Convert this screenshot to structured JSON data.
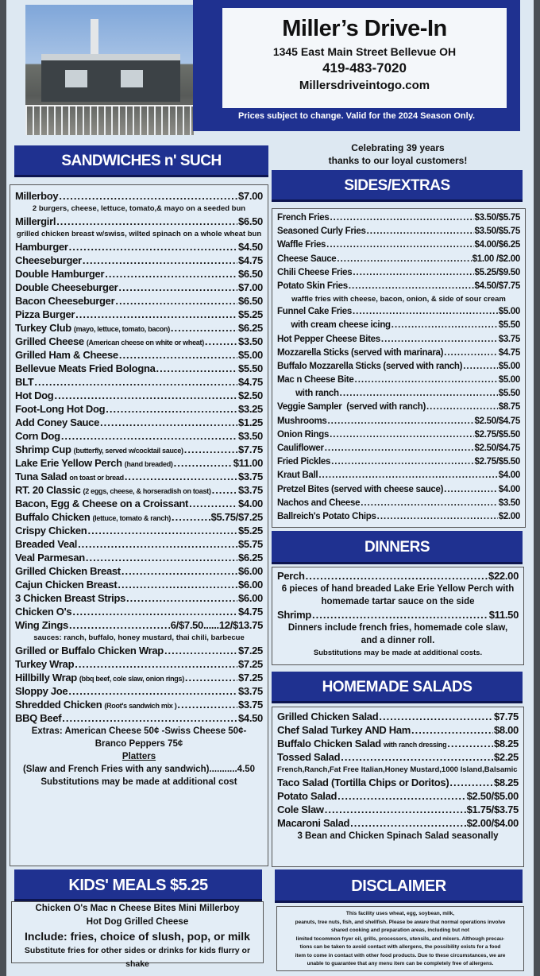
{
  "header": {
    "title": "Miller’s Drive-In",
    "address": "1345 East Main Street Bellevue OH",
    "phone": "419-483-7020",
    "website": "Millersdriveintogo.com",
    "notice": "Prices subject to change.  Valid for the 2024 Season Only."
  },
  "celebrate": [
    "Celebrating 39 years",
    "thanks to our loyal customers!"
  ],
  "colors": {
    "navy": "#1f3190",
    "paper": "#dde8f2"
  },
  "sandwiches": {
    "title": "SANDWICHES n' SUCH",
    "items": [
      {
        "name": "Millerboy",
        "price": "$7.00"
      },
      {
        "desc": "2 burgers, cheese, lettuce, tomato,& mayo on a seeded bun"
      },
      {
        "name": "Millergirl",
        "price": "$6.50"
      },
      {
        "desc": "grilled chicken breast w/swiss, wilted spinach on a whole wheat bun"
      },
      {
        "name": "Hamburger",
        "price": "$4.50"
      },
      {
        "name": "Cheeseburger",
        "price": "$4.75"
      },
      {
        "name": "Double Hamburger",
        "price": "$6.50"
      },
      {
        "name": "Double Cheeseburger",
        "price": "$7.00"
      },
      {
        "name": "Bacon Cheeseburger",
        "price": "$6.50"
      },
      {
        "name": "Pizza Burger",
        "price": "$5.25"
      },
      {
        "name": "Turkey Club",
        "note": "(mayo, lettuce, tomato, bacon)",
        "price": "$6.25"
      },
      {
        "name": "Grilled Cheese",
        "note": "(American cheese on white or wheat)",
        "price": "$3.50"
      },
      {
        "name": "Grilled Ham & Cheese",
        "price": "$5.00"
      },
      {
        "name": "Bellevue Meats Fried Bologna",
        "price": "$5.50"
      },
      {
        "name": "BLT",
        "price": "$4.75"
      },
      {
        "name": "Hot Dog",
        "price": "$2.50"
      },
      {
        "name": "Foot-Long Hot Dog",
        "price": "$3.25"
      },
      {
        "name": "Add Coney Sauce",
        "price": "$1.25"
      },
      {
        "name": "Corn Dog",
        "price": "$3.50"
      },
      {
        "name": "Shrimp Cup",
        "note": "(butterfly, served w/cocktail sauce)",
        "price": "$7.75"
      },
      {
        "name": "Lake Erie Yellow Perch",
        "note": "(hand breaded)",
        "price": "$11.00"
      },
      {
        "name": "Tuna Salad",
        "note": "on toast or bread",
        "price": "$3.75"
      },
      {
        "name": "RT. 20 Classic",
        "note": "(2 eggs, cheese, & horseradish on toast)",
        "price": "$3.75"
      },
      {
        "name": "Bacon, Egg & Cheese on a Croissant",
        "price": "$4.00"
      },
      {
        "name": "Buffalo Chicken",
        "note": "(lettuce, tomato & ranch)",
        "price": "$5.75/$7.25"
      },
      {
        "name": "Crispy Chicken",
        "price": "$5.25"
      },
      {
        "name": "Breaded Veal",
        "price": "$5.75"
      },
      {
        "name": "Veal Parmesan",
        "price": "$6.25"
      },
      {
        "name": "Grilled Chicken Breast",
        "price": "$6.00"
      },
      {
        "name": "Cajun Chicken Breast",
        "price": "$6.00"
      },
      {
        "name": "3 Chicken Breast Strips",
        "price": "$6.00"
      },
      {
        "name": "Chicken O's",
        "price": "$4.75"
      },
      {
        "name": "Wing Zings",
        "price": "6/$7.50......12/$13.75"
      },
      {
        "desc": "sauces: ranch, buffalo, honey mustard, thai chili, barbecue"
      },
      {
        "name": "Grilled or Buffalo Chicken Wrap",
        "price": "$7.25"
      },
      {
        "name": "Turkey Wrap",
        "price": "$7.25"
      },
      {
        "name": "Hillbilly Wrap",
        "note": "(bbq beef, cole slaw, onion rings)",
        "price": "$7.25"
      },
      {
        "name": "Sloppy Joe",
        "price": "$3.75"
      },
      {
        "name": "Shredded Chicken",
        "note": "(Root's sandwich mix )",
        "price": "$3.75"
      },
      {
        "name": "BBQ Beef",
        "price": "$4.50"
      },
      {
        "text": "Extras: American Cheese 50¢ -Swiss Cheese 50¢-"
      },
      {
        "text": "Branco Peppers 75¢"
      },
      {
        "text": "Platters",
        "underline": true
      },
      {
        "text": "(Slaw and French Fries with any sandwich)...........4.50"
      },
      {
        "text": "Substitutions may be made at additional cost"
      }
    ]
  },
  "sides": {
    "title": "SIDES/EXTRAS",
    "items": [
      {
        "name": "French Fries",
        "price": "$3.50/$5.75"
      },
      {
        "name": "Seasoned Curly Fries",
        "price": "$3.50/$5.75"
      },
      {
        "name": "Waffle Fries",
        "price": "$4.00/$6.25"
      },
      {
        "name": "Cheese Sauce",
        "price": "$1.00 /$2.00"
      },
      {
        "name": "Chili Cheese Fries",
        "price": "$5.25/$9.50"
      },
      {
        "name": "Potato Skin Fries",
        "price": "$4.50/$7.75"
      },
      {
        "desc": "waffle fries with cheese, bacon, onion, & side of sour cream"
      },
      {
        "name": "Funnel Cake Fries",
        "price": "$5.00"
      },
      {
        "name": "      with cream cheese icing",
        "price": "$5.50"
      },
      {
        "name": "Hot Pepper Cheese Bites",
        "price": "$3.75"
      },
      {
        "name": "Mozzarella Sticks (served with marinara)",
        "price": "$4.75"
      },
      {
        "name": "Buffalo Mozzarella Sticks (served with ranch)",
        "price": "$5.00"
      },
      {
        "name": "Mac n Cheese Bite",
        "price": "$5.00"
      },
      {
        "name": "        with ranch",
        "price": "$5.50"
      },
      {
        "name": "Veggie Sampler  (served with ranch)",
        "price": "$8.75"
      },
      {
        "name": "Mushrooms",
        "price": "$2.50/$4.75"
      },
      {
        "name": "Onion Rings",
        "price": "$2.75/$5.50"
      },
      {
        "name": "Cauliflower",
        "price": "$2.50/$4.75"
      },
      {
        "name": "Fried Pickles",
        "price": "$2.75/$5.50"
      },
      {
        "name": "Kraut Ball",
        "price": "$4.00"
      },
      {
        "name": "Pretzel Bites (served with cheese sauce)",
        "price": "$4.00"
      },
      {
        "name": "Nachos and Cheese",
        "price": "$3.50"
      },
      {
        "name": "Ballreich's Potato Chips",
        "price": "$2.00"
      }
    ]
  },
  "dinners": {
    "title": "DINNERS",
    "items": [
      {
        "name": "Perch",
        "price": "$22.00"
      },
      {
        "text": "6 pieces of hand breaded Lake Erie Yellow Perch with"
      },
      {
        "text": "homemade tartar sauce on the side"
      },
      {
        "name": "Shrimp",
        "price": "$11.50"
      },
      {
        "text": "Dinners include french fries, homemade cole slaw,"
      },
      {
        "text": "and a dinner roll."
      },
      {
        "desc": "Substitutions may be made at additional costs."
      }
    ]
  },
  "salads": {
    "title": "HOMEMADE SALADS",
    "items": [
      {
        "name": "Grilled Chicken Salad",
        "price": "$7.75"
      },
      {
        "name": "Chef Salad Turkey AND Ham",
        "price": "$8.00"
      },
      {
        "name": "Buffalo Chicken Salad",
        "note": "with ranch dressing",
        "price": "$8.25"
      },
      {
        "name": "Tossed Salad",
        "price": "$2.25"
      },
      {
        "desc": "French,Ranch,Fat Free Italian,Honey Mustard,1000 Island,Balsamic"
      },
      {
        "name": "Taco Salad (Tortilla Chips or Doritos)",
        "price": "$8.25"
      },
      {
        "name": "Potato Salad",
        "price": "$2.50/$5.00"
      },
      {
        "name": "Cole Slaw",
        "price": "$1.75/$3.75"
      },
      {
        "name": "Macaroni Salad",
        "price": "$2.00/$4.00"
      },
      {
        "text": "3 Bean and Chicken Spinach Salad  seasonally"
      }
    ]
  },
  "kids": {
    "title": "KIDS' MEALS  $5.25",
    "items": [
      {
        "text": "Chicken O's   Mac n Cheese Bites   Mini Millerboy"
      },
      {
        "text": "Hot Dog    Grilled Cheese"
      },
      {
        "text": "Include: fries, choice of slush, pop, or milk"
      },
      {
        "text": "Substitute fries for other sides or drinks for kids flurry or shake"
      }
    ]
  },
  "disclaimer": {
    "title": "DISCLAIMER",
    "lines": [
      "This facility uses wheat, egg, soybean, milk,",
      "peanuts, tree nuts, fish, and shellfish. Please be aware that normal operations involve",
      "shared cooking and preparation areas, including but not",
      "limited tocommon fryer oil, grills, processors, utensils, and mixers. Although precau-",
      "tions can be taken to avoid contact with allergens, the possibility exists for a food",
      "item to come in contact with other food products. Due to these circumstances, we are",
      "unable to guarantee that any menu item can be completely free of allergens."
    ]
  }
}
